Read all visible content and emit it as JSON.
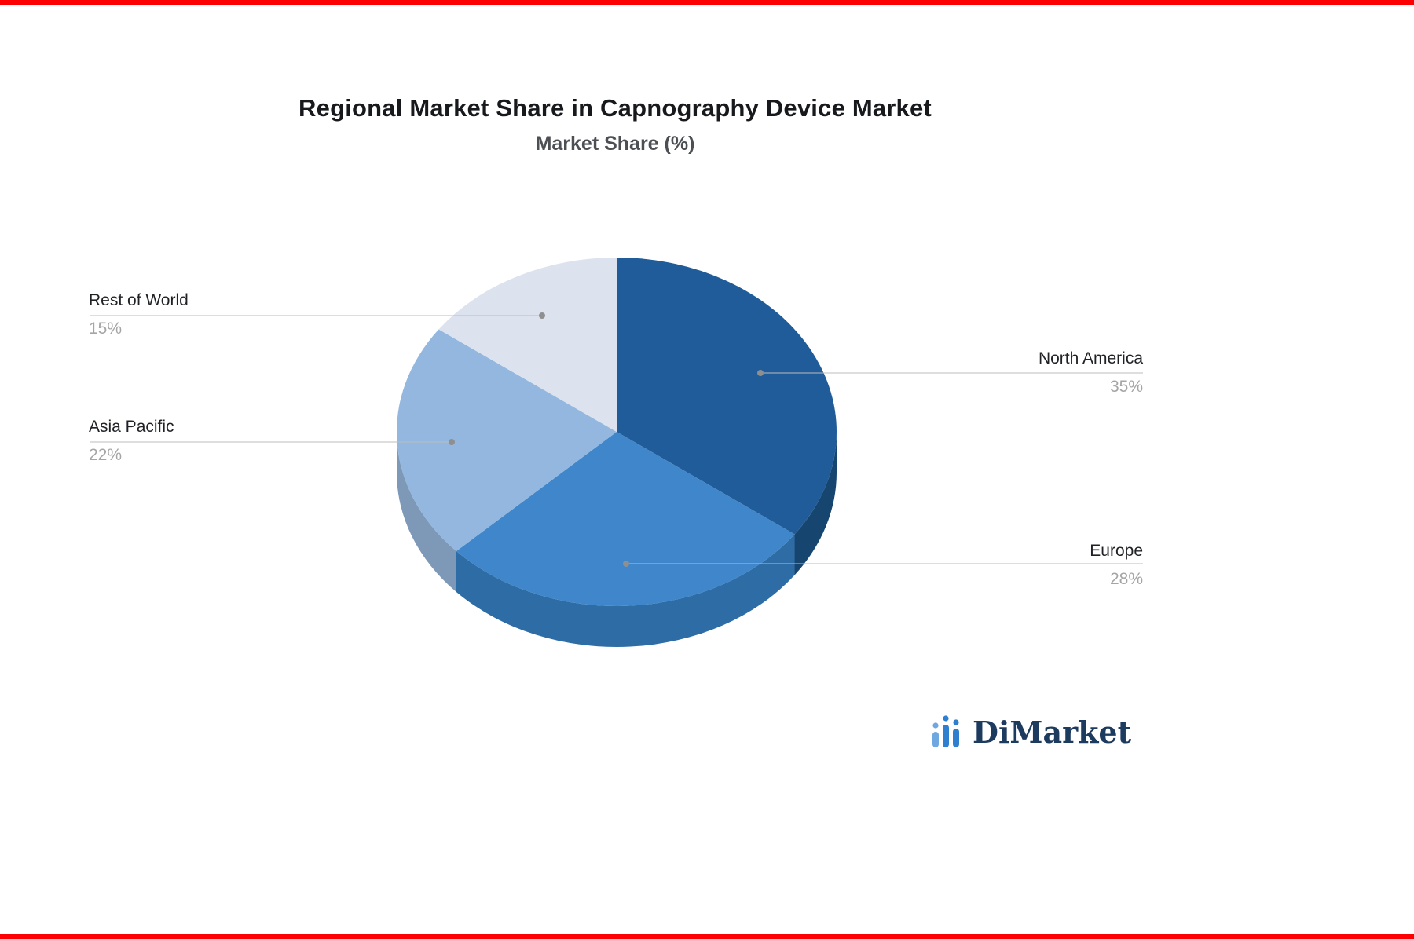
{
  "page": {
    "background": "#ffffff",
    "top_bar_color": "#fb0103",
    "bottom_bar_color": "#fb0103"
  },
  "chart_data": {
    "type": "pie",
    "style": "3d",
    "title": "Regional Market Share in Capnography Device Market",
    "subtitle": "Market Share (%)",
    "unit": "%",
    "start_angle_deg": 0,
    "direction": "clockwise",
    "legend_position": "callout-labels",
    "slices": [
      {
        "label": "North America",
        "value": 35,
        "display": "35%",
        "color": "#1F5C99",
        "side_color": "#16466F"
      },
      {
        "label": "Europe",
        "value": 28,
        "display": "28%",
        "color": "#3F87CA",
        "side_color": "#2E6CA6"
      },
      {
        "label": "Asia Pacific",
        "value": 22,
        "display": "22%",
        "color": "#93B7DE",
        "side_color": "#7E99B8"
      },
      {
        "label": "Rest of World",
        "value": 15,
        "display": "15%",
        "color": "#DDE3EE",
        "side_color": "#C3CBDA"
      }
    ],
    "callout_line_color": "#bcbcbc",
    "callout_dot_color": "#8f8f8f",
    "label_color": "#1f2125",
    "percent_color": "#a5a5a5"
  },
  "branding": {
    "logo_text": "DiMarket",
    "logo_color": "#1d3a5f",
    "icon_color": "#2e7fd0",
    "icon_name": "mini-bar-chart-icon"
  }
}
